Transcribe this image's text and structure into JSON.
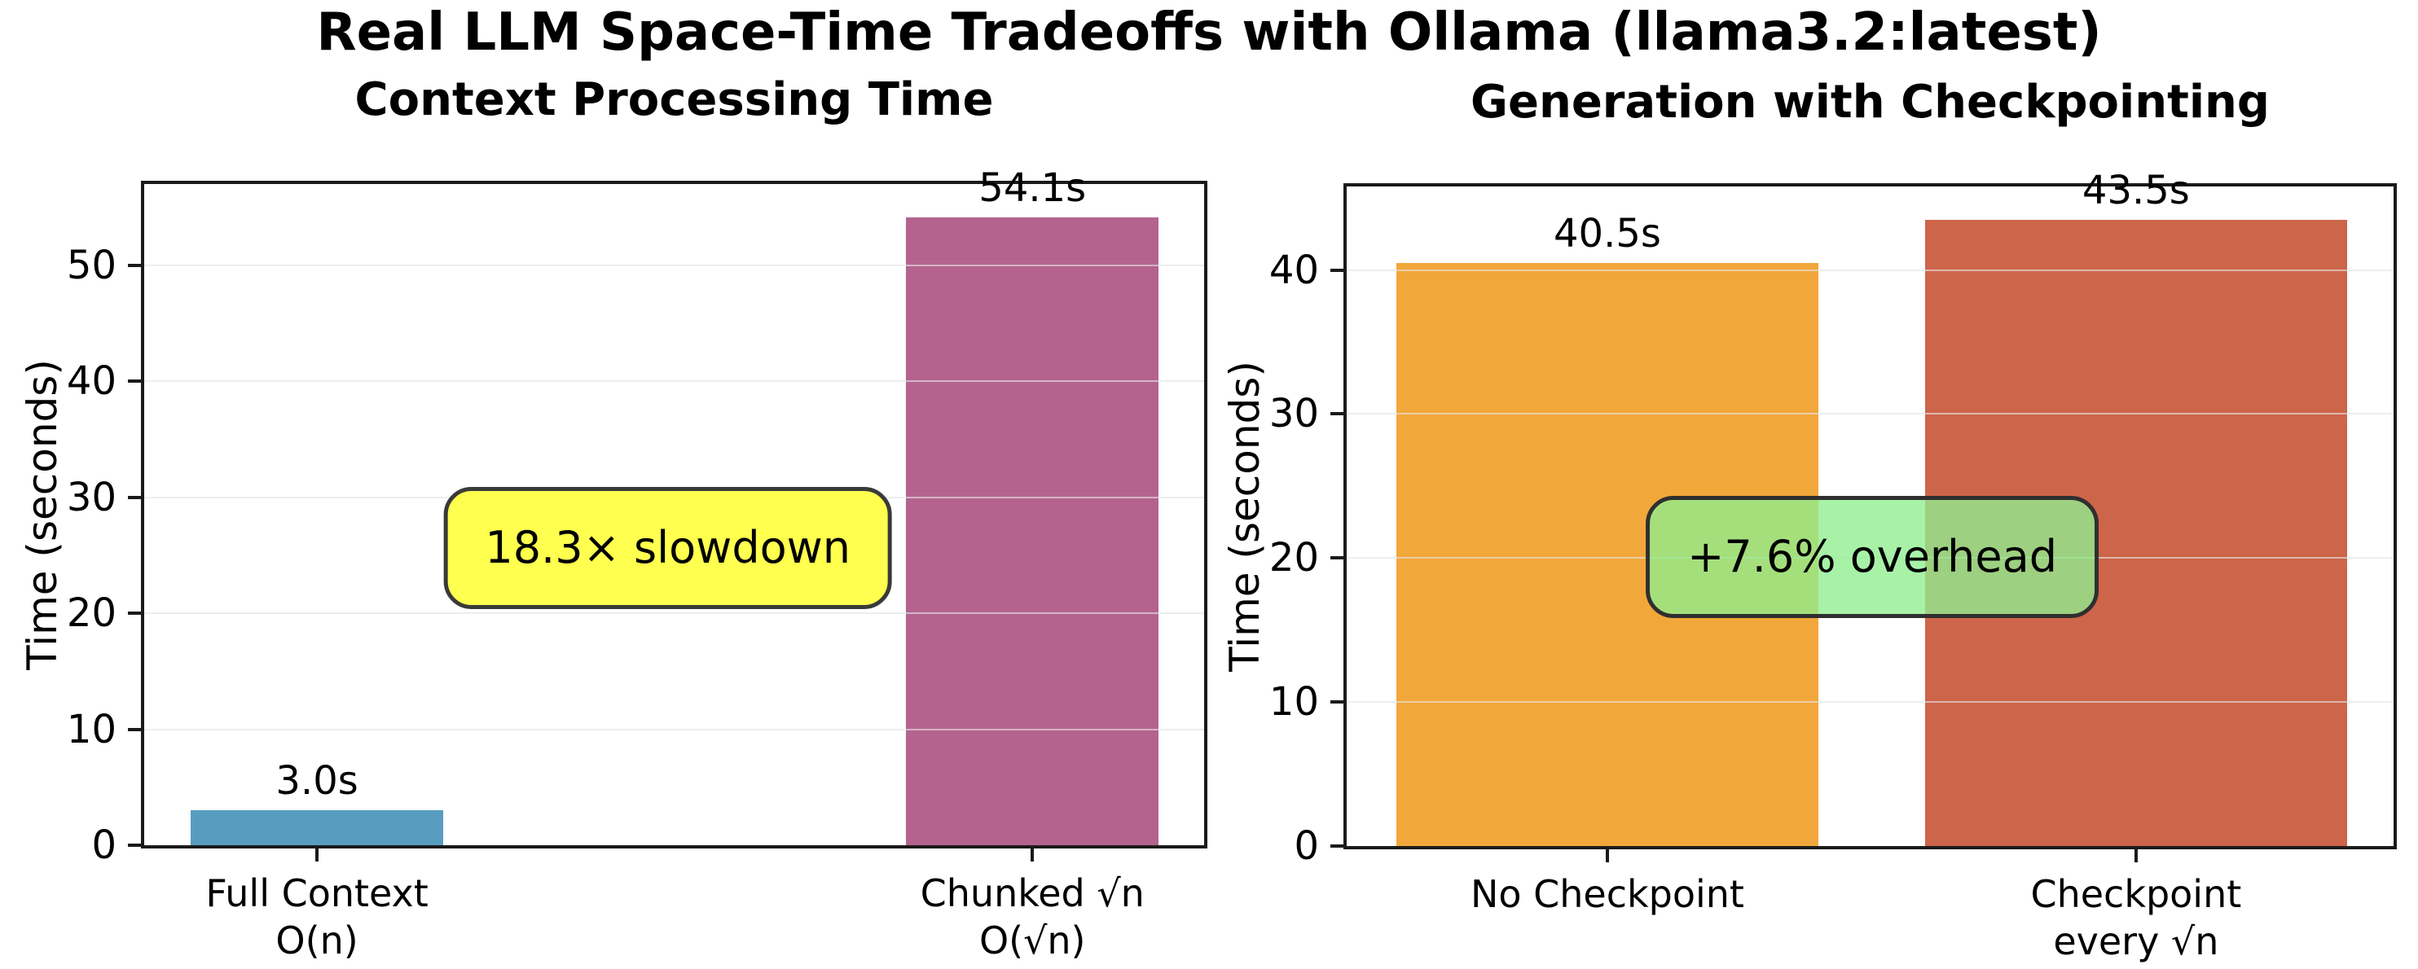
{
  "figure": {
    "title": "Real LLM Space-Time Tradeoffs with Ollama (llama3.2:latest)"
  },
  "style": {
    "background": "#ffffff",
    "axis_color": "#1a1a1a",
    "grid_color": "rgba(228,228,228,0.65)",
    "text_color": "#000000"
  },
  "chart_data": [
    {
      "type": "bar",
      "title": "Context Processing Time",
      "ylabel": "Time (seconds)",
      "xlabel": "",
      "categories": [
        "Full Context\nO(n)",
        "Chunked √n\nO(√n)"
      ],
      "values": [
        3.0,
        54.1
      ],
      "value_labels": [
        "3.0s",
        "54.1s"
      ],
      "bar_colors": [
        "#579dbf",
        "#b4638f"
      ],
      "ylim": [
        0,
        57
      ],
      "yticks": [
        0,
        10,
        20,
        30,
        40,
        50
      ],
      "grid": true,
      "legend": "none",
      "annotation": {
        "text": "18.3× slowdown",
        "bg_color": "rgba(255,255,60,0.9)",
        "border_color": "#3a3a3a",
        "x_frac": 0.494,
        "y_value": 25.6
      },
      "bar_centers_frac": [
        0.163,
        0.838
      ],
      "bar_width_frac": 0.238
    },
    {
      "type": "bar",
      "title": "Generation with Checkpointing",
      "ylabel": "Time (seconds)",
      "xlabel": "",
      "categories": [
        "No Checkpoint",
        "Checkpoint\nevery √n"
      ],
      "values": [
        40.5,
        43.5
      ],
      "value_labels": [
        "40.5s",
        "43.5s"
      ],
      "bar_colors": [
        "#f2a73a",
        "#cd654a"
      ],
      "ylim": [
        0,
        45.8
      ],
      "yticks": [
        0,
        10,
        20,
        30,
        40
      ],
      "grid": true,
      "legend": "none",
      "annotation": {
        "text": "+7.6% overhead",
        "bg_color": "rgba(144,238,144,0.78)",
        "border_color": "#2f2f2f",
        "x_frac": 0.502,
        "y_value": 20.1
      },
      "bar_centers_frac": [
        0.249,
        0.754
      ],
      "bar_width_frac": 0.403
    }
  ]
}
